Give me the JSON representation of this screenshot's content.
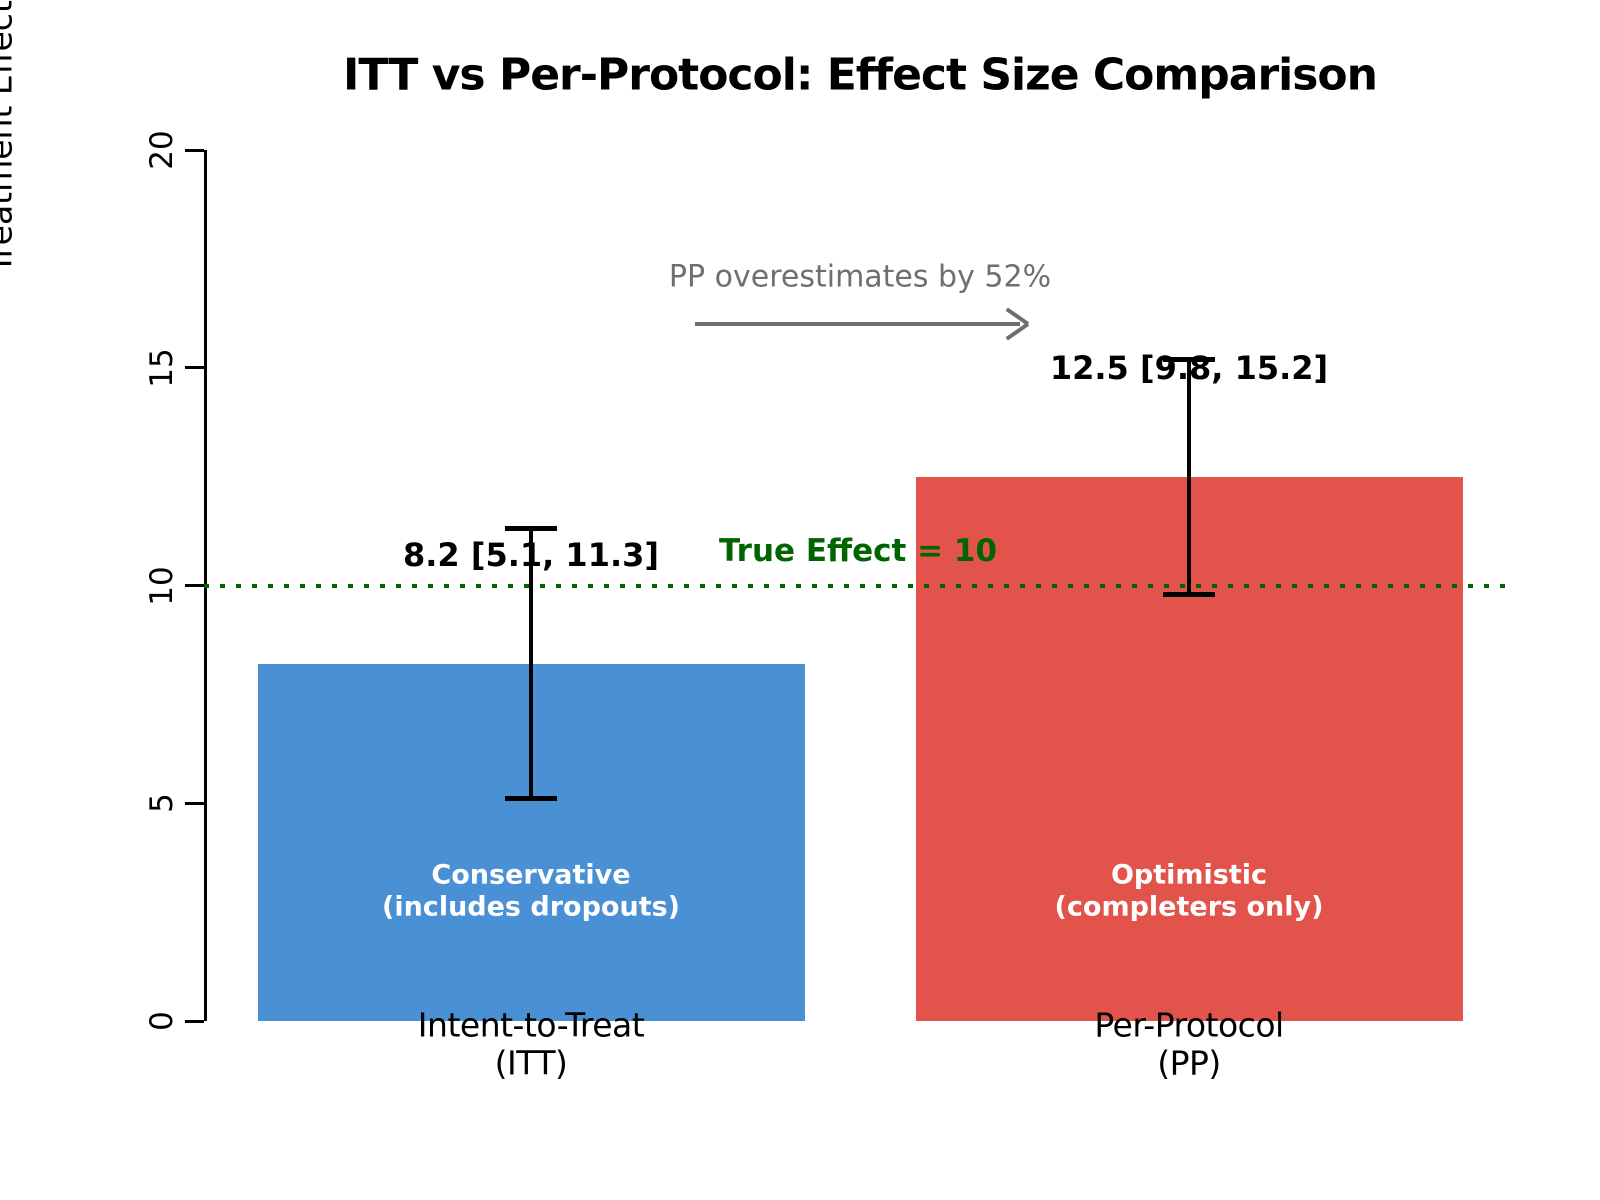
{
  "chart_data": {
    "type": "bar",
    "title": "ITT vs Per-Protocol: Effect Size Comparison",
    "ylabel": "Treatment Effect Estimate (units)",
    "xlabel": "",
    "ylim": [
      0,
      20
    ],
    "yticks": [
      {
        "value": 0,
        "label": "0"
      },
      {
        "value": 5,
        "label": "5"
      },
      {
        "value": 10,
        "label": "10"
      },
      {
        "value": 15,
        "label": "15"
      },
      {
        "value": 20,
        "label": "20"
      }
    ],
    "grid": false,
    "legend": "none",
    "bars": [
      {
        "category_line1": "Intent-to-Treat",
        "category_line2": "(ITT)",
        "value": 8.2,
        "ci_low": 5.1,
        "ci_high": 11.3,
        "value_label": "8.2 [5.1, 11.3]",
        "inner_label_line1": "Conservative",
        "inner_label_line2": "(includes dropouts)",
        "color": "#4A90D5"
      },
      {
        "category_line1": "Per-Protocol",
        "category_line2": "(PP)",
        "value": 12.5,
        "ci_low": 9.8,
        "ci_high": 15.2,
        "value_label": "12.5 [9.8, 15.2]",
        "inner_label_line1": "Optimistic",
        "inner_label_line2": "(completers only)",
        "color": "#E2544B"
      }
    ],
    "reference_line": {
      "value": 10,
      "label": "True Effect = 10",
      "color": "#006400",
      "style": "dotted"
    },
    "annotation": {
      "text": "PP overestimates by 52%",
      "color": "#6F6F6F",
      "arrow_direction": "right"
    },
    "colors": {
      "error_bar": "#000000",
      "axis": "#000000",
      "title_text": "#000000"
    }
  }
}
